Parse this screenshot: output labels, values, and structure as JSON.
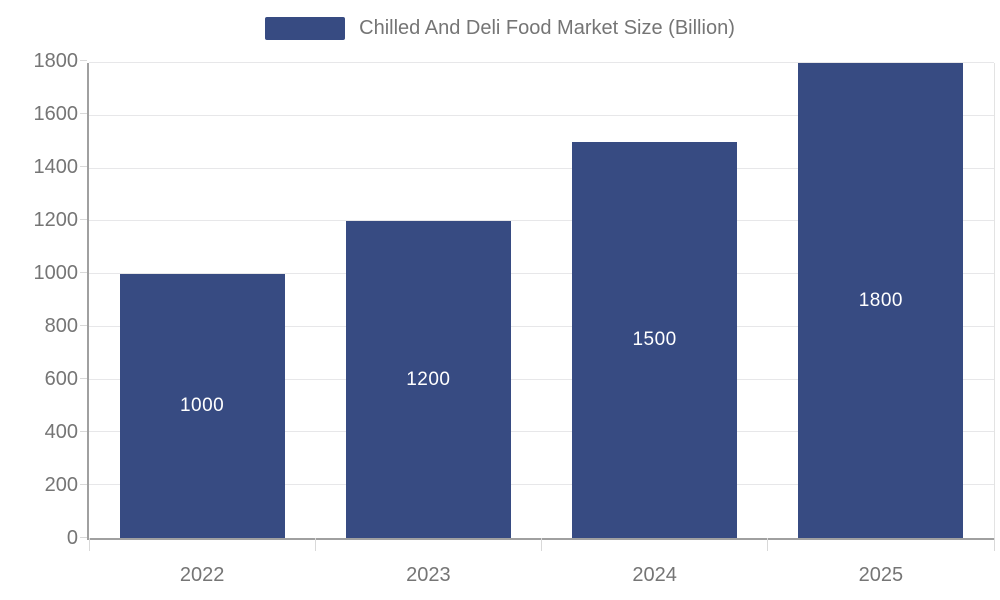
{
  "legend": {
    "label": "Chilled And Deli Food Market Size (Billion)"
  },
  "chart_data": {
    "type": "bar",
    "title": "Chilled And Deli Food Market Size (Billion)",
    "categories": [
      "2022",
      "2023",
      "2024",
      "2025"
    ],
    "values": [
      1000,
      1200,
      1500,
      1800
    ],
    "series": [
      {
        "name": "Chilled And Deli Food Market Size (Billion)",
        "values": [
          1000,
          1200,
          1500,
          1800
        ]
      }
    ],
    "xlabel": "",
    "ylabel": "",
    "ylim": [
      0,
      1800
    ],
    "ytick_step": 200,
    "ytick_labels": [
      "0",
      "200",
      "400",
      "600",
      "800",
      "1000",
      "1200",
      "1400",
      "1600",
      "1800"
    ],
    "grid": true,
    "legend_position": "top-center",
    "bar_labels_shown": true,
    "colors": {
      "bar_fill": "#374B82",
      "bar_value_label": "#FFFFFF",
      "axis_text": "#757575",
      "gridline": "#E7E7E9",
      "axis_line": "#A0A0A0",
      "boundary_tick": "#D9D9D9",
      "plot_right_border": "#E3E3E3",
      "background": "#FFFFFF"
    }
  }
}
